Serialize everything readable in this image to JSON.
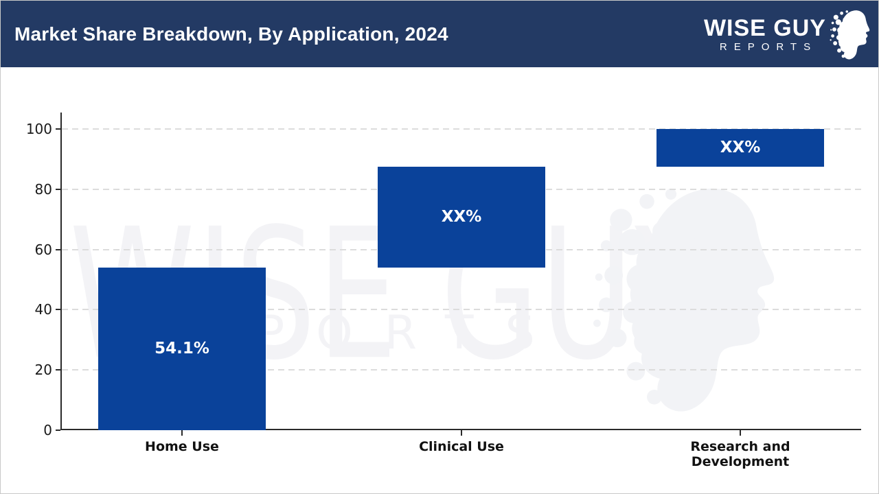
{
  "header": {
    "title": "Market Share Breakdown, By Application, 2024",
    "logo": {
      "wordmark": "WISE GUY",
      "subtext": "REPORTS"
    }
  },
  "watermark": {
    "line1": "WISE GUY",
    "line2": "REPORTS"
  },
  "chart_data": {
    "type": "bar",
    "subtype": "floating-waterfall",
    "title": "Market Share Breakdown, By Application, 2024",
    "categories": [
      "Home Use",
      "Clinical Use",
      "Research and Development"
    ],
    "bars": [
      {
        "category": "Home Use",
        "start": 0,
        "end": 54.1,
        "label": "54.1%"
      },
      {
        "category": "Clinical Use",
        "start": 54.1,
        "end": 87.5,
        "label": "XX%"
      },
      {
        "category": "Research and Development",
        "start": 87.5,
        "end": 100,
        "label": "XX%"
      }
    ],
    "xlabel": "",
    "ylabel": "",
    "ylim": [
      0,
      100
    ],
    "yticks": [
      0,
      20,
      40,
      60,
      80,
      100
    ],
    "grid": "horizontal-dashed",
    "legend": "none",
    "bar_color": "#0a429a",
    "bar_label_color": "#ffffff"
  },
  "colors": {
    "header_bg": "#233a64",
    "bar": "#0a429a",
    "gridline": "#dcdcdc",
    "axis": "#2a2a2a",
    "watermark": "#f3f3f6"
  }
}
